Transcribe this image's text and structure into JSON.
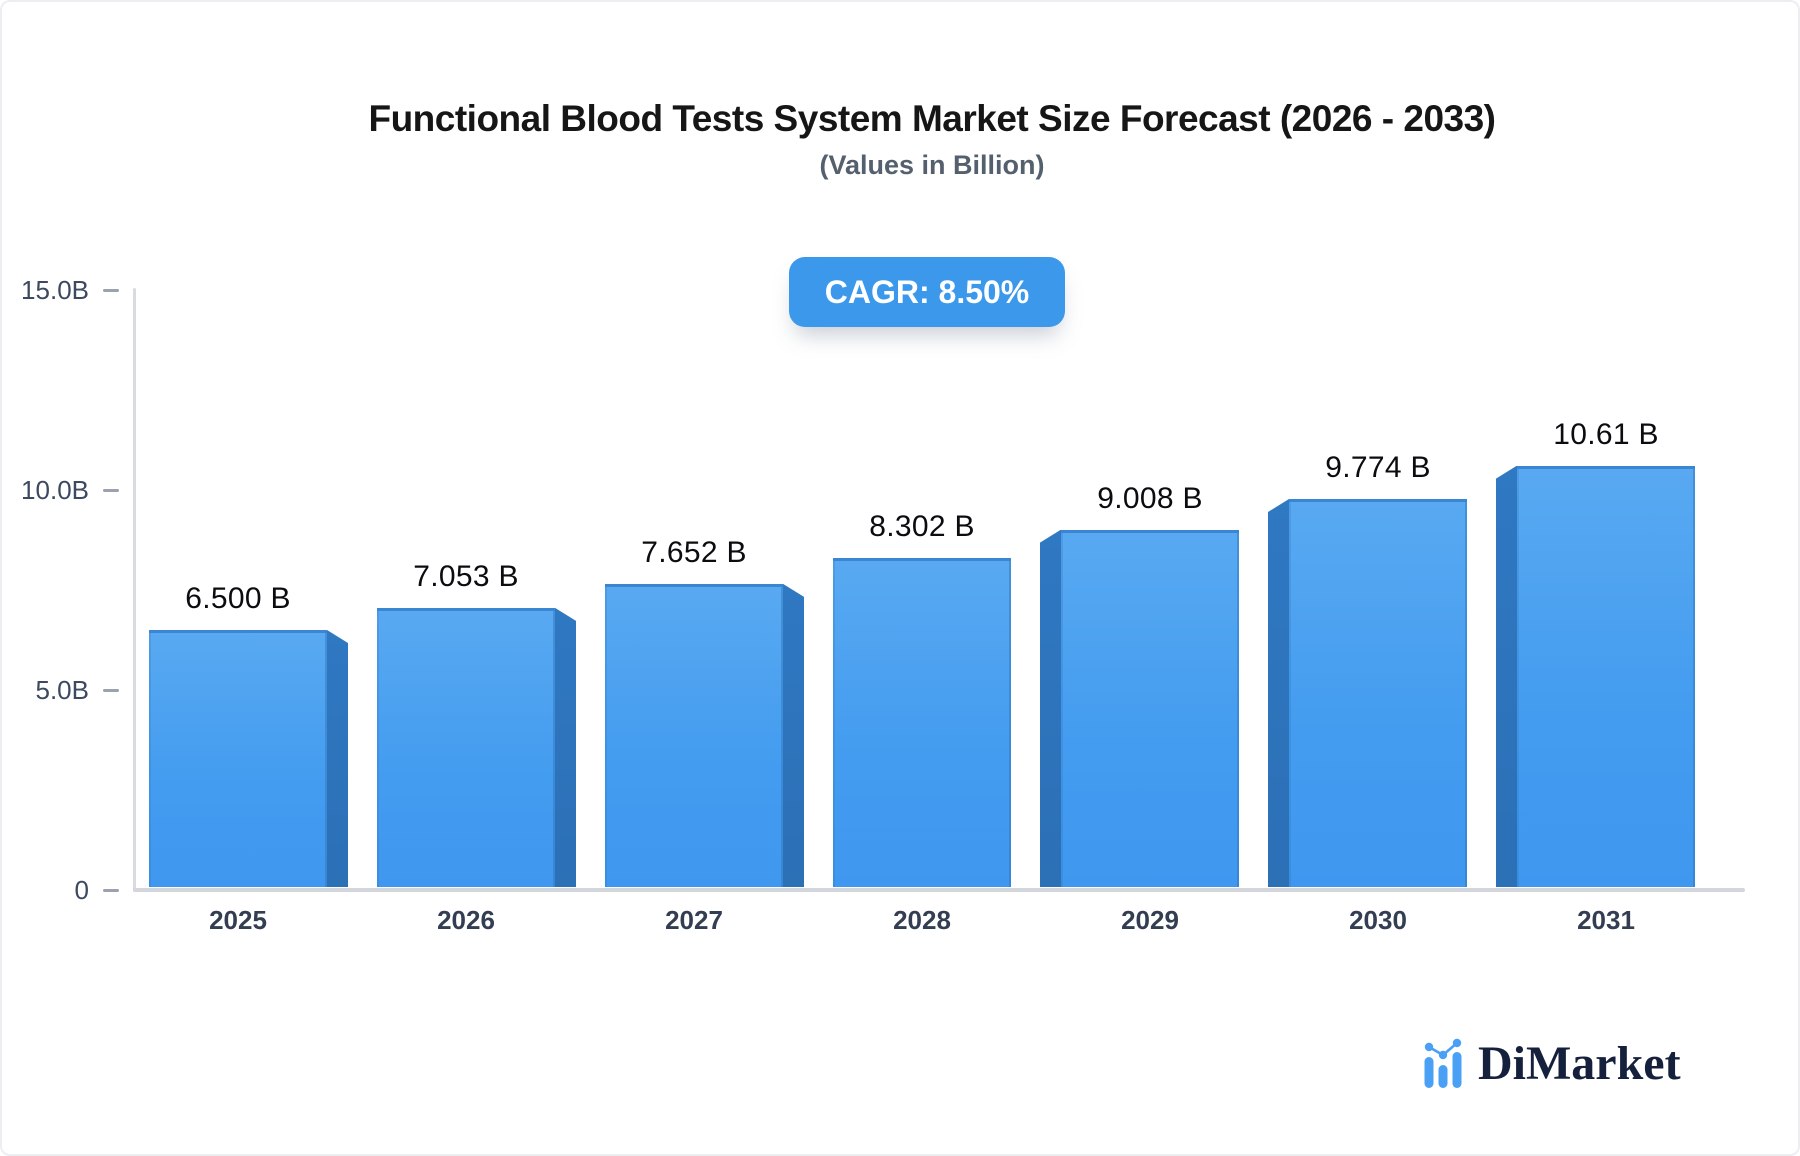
{
  "header": {
    "title": "Functional Blood Tests System Market Size Forecast (2026 - 2033)",
    "subtitle": "(Values in Billion)",
    "cagr_badge": "CAGR: 8.50%"
  },
  "chart_data": {
    "type": "bar",
    "title": "Functional Blood Tests System Market Size Forecast (2026 - 2033)",
    "subtitle": "(Values in Billion)",
    "unit": "Billion",
    "cagr": "8.50%",
    "categories": [
      "2025",
      "2026",
      "2027",
      "2028",
      "2029",
      "2030",
      "2031"
    ],
    "values": [
      6.5,
      7.053,
      7.652,
      8.302,
      9.008,
      9.774,
      10.61
    ],
    "value_labels": [
      "6.500 B",
      "7.053 B",
      "7.652 B",
      "8.302 B",
      "9.008 B",
      "9.774 B",
      "10.61 B"
    ],
    "ylim": [
      0,
      15
    ],
    "yticks": [
      {
        "value": 15,
        "label": "15.0B"
      },
      {
        "value": 10,
        "label": "10.0B"
      },
      {
        "value": 5,
        "label": "5.0B"
      },
      {
        "value": 0,
        "label": "0"
      }
    ],
    "grid": false,
    "legend": "none",
    "bar_color": "#3f97ef",
    "bar_side_color": "#2d73ba",
    "accent_color": "#3b98ea",
    "axis_color": "#d3d6da",
    "label_color": "#3c4961"
  },
  "branding": {
    "logo_text": "DiMarket",
    "logo_icon": "mini-bar-chart-icon",
    "logo_text_color": "#15213c",
    "logo_icon_color": "#4aa0f5"
  }
}
